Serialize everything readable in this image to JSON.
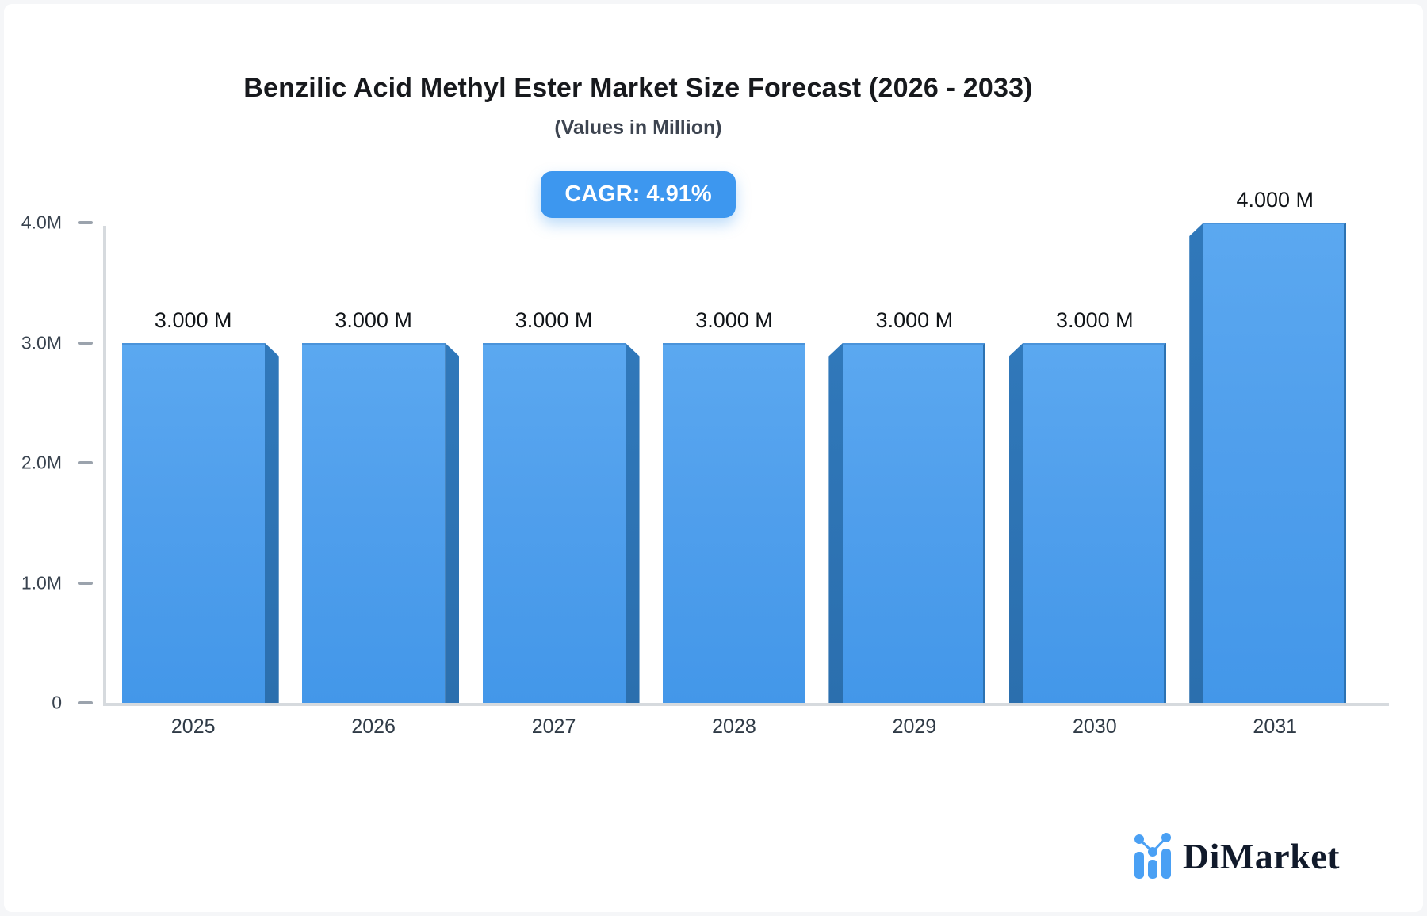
{
  "header": {
    "title": "Benzilic Acid Methyl Ester Market Size Forecast (2026 - 2033)",
    "subtitle": "(Values in Million)",
    "cagr_badge": "CAGR: 4.91%"
  },
  "chart_data": {
    "type": "bar",
    "title": "Benzilic Acid Methyl Ester Market Size Forecast (2026 - 2033)",
    "subtitle": "(Values in Million)",
    "annotation": "CAGR: 4.91%",
    "categories": [
      "2025",
      "2026",
      "2027",
      "2028",
      "2029",
      "2030",
      "2031"
    ],
    "values": [
      3.0,
      3.0,
      3.0,
      3.0,
      3.0,
      3.0,
      4.0
    ],
    "bar_labels": [
      "3.000 M",
      "3.000 M",
      "3.000 M",
      "3.000 M",
      "3.000 M",
      "3.000 M",
      "4.000 M"
    ],
    "xlabel": "",
    "ylabel": "",
    "ylim": [
      0,
      4.0
    ],
    "y_ticks": [
      {
        "value": 4,
        "label": "4.0M"
      },
      {
        "value": 3,
        "label": "3.0M"
      },
      {
        "value": 2,
        "label": "2.0M"
      },
      {
        "value": 1,
        "label": "1.0M"
      },
      {
        "value": 0,
        "label": "0"
      }
    ],
    "grid": false,
    "legend": false,
    "colors": {
      "bar_face": "#55a3ee",
      "bar_side": "#2d74b4",
      "badge": "#3d97ef",
      "axis_line": "#d6dade",
      "tick": "#9ba3ad"
    }
  },
  "footer": {
    "brand": "DiMarket"
  }
}
